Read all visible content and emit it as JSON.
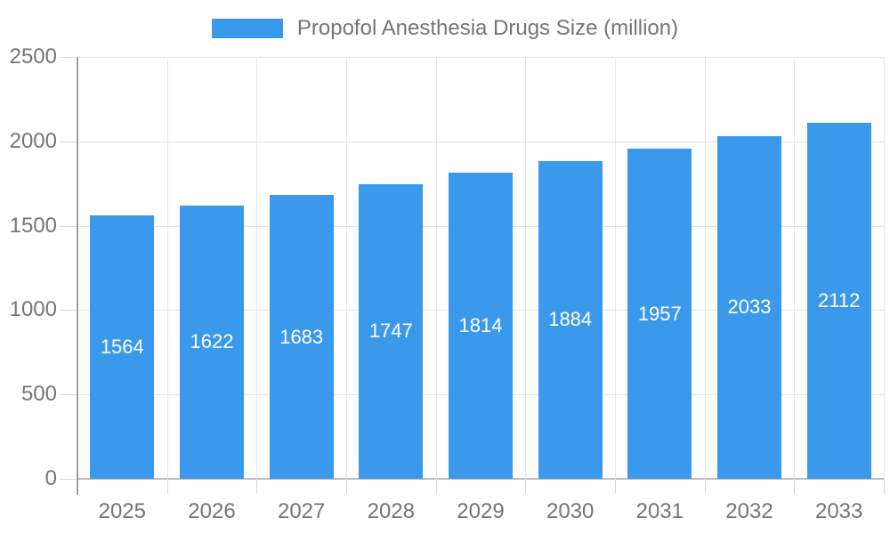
{
  "legend": {
    "label": "Propofol Anesthesia Drugs Size (million)"
  },
  "colors": {
    "bar": "#3B99EC",
    "bar_label_text": "#FFFFFF",
    "axis_text": "#757575",
    "gridline": "#E6E6E6",
    "tick": "#D9D9D9",
    "axis_line": "#9E9E9E",
    "baseline": "#BDBDBD",
    "background": "#FFFFFF"
  },
  "chart_data": {
    "type": "bar",
    "categories": [
      "2025",
      "2026",
      "2027",
      "2028",
      "2029",
      "2030",
      "2031",
      "2032",
      "2033"
    ],
    "series": [
      {
        "name": "Propofol Anesthesia Drugs Size (million)",
        "values": [
          1564,
          1622,
          1683,
          1747,
          1814,
          1884,
          1957,
          2033,
          2112
        ]
      }
    ],
    "title": "",
    "xlabel": "",
    "ylabel": "",
    "ylim": [
      0,
      2500
    ],
    "yticks": [
      0,
      500,
      1000,
      1500,
      2000,
      2500
    ],
    "grid": true,
    "legend_position": "top",
    "value_label_position": "inside-center"
  }
}
